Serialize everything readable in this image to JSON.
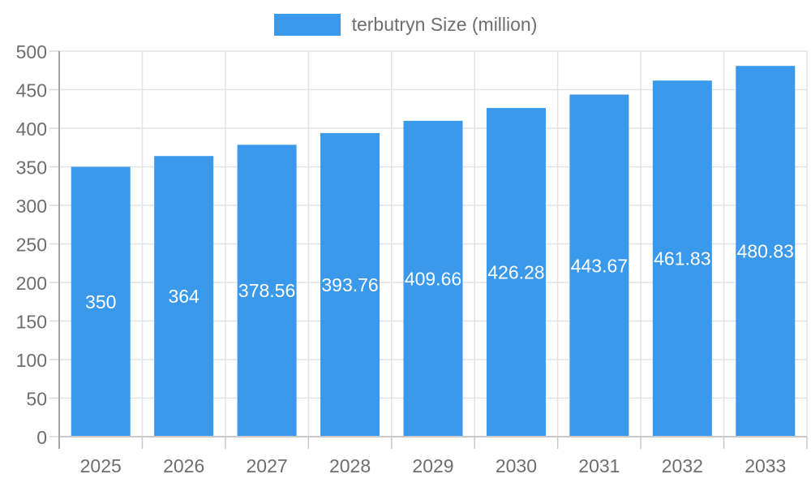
{
  "legend": {
    "label": "terbutryn Size (million)"
  },
  "chart_data": {
    "type": "bar",
    "title": "terbutryn Size (million)",
    "categories": [
      "2025",
      "2026",
      "2027",
      "2028",
      "2029",
      "2030",
      "2031",
      "2032",
      "2033"
    ],
    "series": [
      {
        "name": "terbutryn Size (million)",
        "values": [
          350,
          364,
          378.56,
          393.76,
          409.66,
          426.28,
          443.67,
          461.83,
          480.83
        ],
        "labels": [
          "350",
          "364",
          "378.56",
          "393.76",
          "409.66",
          "426.28",
          "443.67",
          "461.83",
          "480.83"
        ]
      }
    ],
    "xlabel": "",
    "ylabel": "",
    "ylim": [
      0,
      500
    ],
    "ytick_step": 50,
    "grid": true,
    "legend_position": "top",
    "value_labels_position": "center-of-bar",
    "colors": {
      "bar": "#3B99EC",
      "grid": "#e4e4e4",
      "axis": "#a6a6a6",
      "axis_light": "#c9c9c9",
      "tick": "#d9d9d9",
      "text": "#6e6e6e",
      "value_label": "#ffffff",
      "background": "#ffffff"
    }
  }
}
